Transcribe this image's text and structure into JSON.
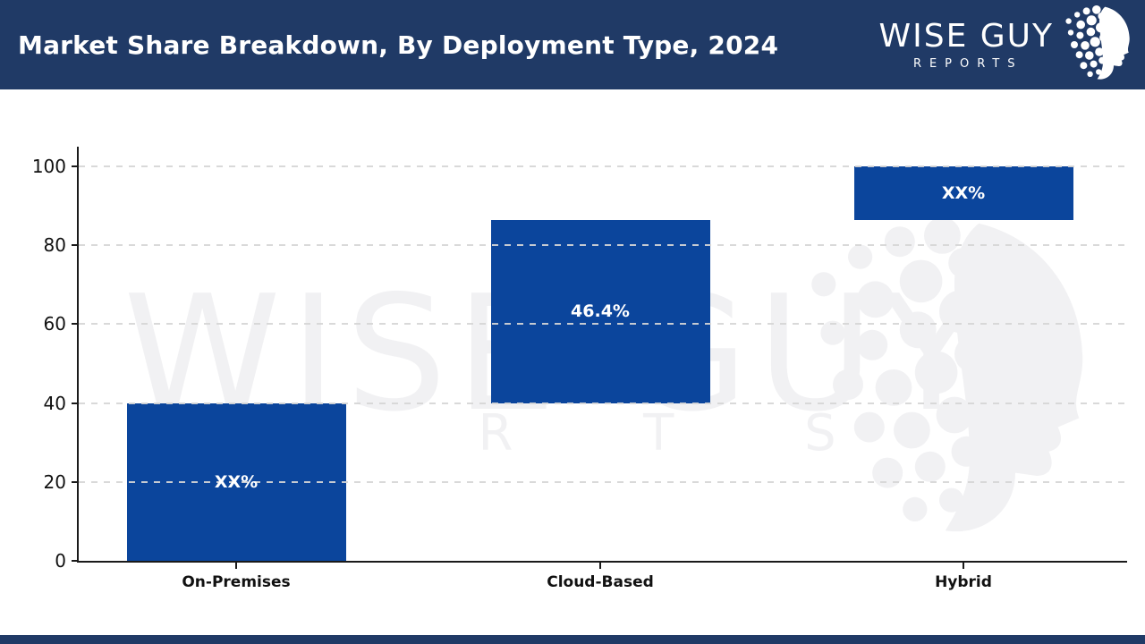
{
  "header": {
    "title": "Market Share Breakdown, By Deployment Type, 2024",
    "logo": {
      "line1": "WISE GUY",
      "line2": "REPORTS"
    }
  },
  "watermark": {
    "line1": "WISE GUY",
    "line2": "P O R T S"
  },
  "chart_data": {
    "type": "bar",
    "variant": "stacked-waterfall-floating-bars",
    "title": "Market Share Breakdown, By Deployment Type, 2024",
    "categories": [
      "On-Premises",
      "Cloud-Based",
      "Hybrid"
    ],
    "segments": [
      {
        "category": "On-Premises",
        "start": 0,
        "end": 40,
        "label": "XX%"
      },
      {
        "category": "Cloud-Based",
        "start": 40,
        "end": 86.4,
        "label": "46.4%"
      },
      {
        "category": "Hybrid",
        "start": 86.4,
        "end": 100,
        "label": "XX%"
      }
    ],
    "xlabel": "",
    "ylabel": "",
    "ylim": [
      0,
      105
    ],
    "yticks": [
      0,
      20,
      40,
      60,
      80,
      100
    ],
    "grid": "horizontal-dashed",
    "legend": "none",
    "bar_color": "#0B459C",
    "bar_label_color": "#FFFFFF"
  },
  "colors": {
    "header_bg": "#203A66",
    "footer_bg": "#203A66",
    "bar": "#0B459C",
    "grid": "#D6D6D6",
    "axis": "#1A1A1A",
    "tick_text": "#111111",
    "watermark": "#F1F1F3",
    "background": "#FFFFFF"
  }
}
